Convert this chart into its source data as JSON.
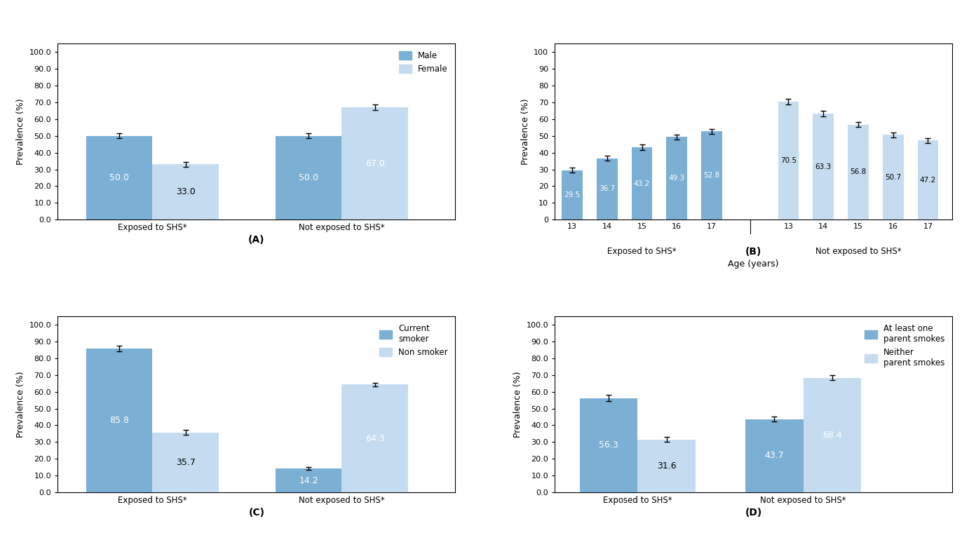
{
  "panel_A": {
    "groups": [
      "Exposed to SHS*",
      "Not exposed to SHS*"
    ],
    "male_values": [
      50.0,
      50.0
    ],
    "female_values": [
      33.0,
      67.0
    ],
    "male_errors": [
      1.5,
      1.5
    ],
    "female_errors": [
      1.5,
      1.8
    ],
    "dark_color": "#7BAFD4",
    "light_color": "#C5DCF0",
    "ylabel": "Prevalence (%)",
    "yticks": [
      0.0,
      10.0,
      20.0,
      30.0,
      40.0,
      50.0,
      60.0,
      70.0,
      80.0,
      90.0,
      100.0
    ],
    "ylim": [
      0,
      105
    ],
    "legend_labels": [
      "Male",
      "Female"
    ],
    "label": "(A)"
  },
  "panel_B": {
    "ages": [
      13,
      14,
      15,
      16,
      17
    ],
    "exposed_values": [
      29.5,
      36.7,
      43.2,
      49.3,
      52.8
    ],
    "not_exposed_values": [
      70.5,
      63.3,
      56.8,
      50.7,
      47.2
    ],
    "exposed_errors": [
      1.5,
      1.5,
      1.5,
      1.5,
      1.5
    ],
    "not_exposed_errors": [
      1.8,
      1.5,
      1.5,
      1.5,
      1.5
    ],
    "dark_color": "#7BAFD4",
    "light_color": "#C5DCF0",
    "ylabel": "Prevalence (%)",
    "yticks": [
      0,
      10,
      20,
      30,
      40,
      50,
      60,
      70,
      80,
      90,
      100
    ],
    "ylim": [
      0,
      105
    ],
    "xlabel": "Age (years)",
    "label": "(B)"
  },
  "panel_C": {
    "groups": [
      "Exposed to SHS*",
      "Not exposed to SHS*"
    ],
    "current_values": [
      85.8,
      14.2
    ],
    "non_values": [
      35.7,
      64.3
    ],
    "current_errors": [
      1.5,
      1.0
    ],
    "non_errors": [
      1.5,
      1.2
    ],
    "dark_color": "#7BAFD4",
    "light_color": "#C5DCF0",
    "ylabel": "Prevalence (%)",
    "yticks": [
      0.0,
      10.0,
      20.0,
      30.0,
      40.0,
      50.0,
      60.0,
      70.0,
      80.0,
      90.0,
      100.0
    ],
    "ylim": [
      0,
      105
    ],
    "legend_labels": [
      "Current\nsmoker",
      "Non smoker"
    ],
    "label": "(C)"
  },
  "panel_D": {
    "groups": [
      "Exposed to SHS*",
      "Not exposed to SHS*"
    ],
    "atleast_values": [
      56.3,
      43.7
    ],
    "neither_values": [
      31.6,
      68.4
    ],
    "atleast_errors": [
      1.8,
      1.5
    ],
    "neither_errors": [
      1.5,
      1.5
    ],
    "dark_color": "#7BAFD4",
    "light_color": "#C5DCF0",
    "ylabel": "Prevalence (%)",
    "yticks": [
      0.0,
      10.0,
      20.0,
      30.0,
      40.0,
      50.0,
      60.0,
      70.0,
      80.0,
      90.0,
      100.0
    ],
    "ylim": [
      0,
      105
    ],
    "legend_labels": [
      "At least one\nparent smokes",
      "Neither\nparent smokes"
    ],
    "label": "(D)"
  }
}
